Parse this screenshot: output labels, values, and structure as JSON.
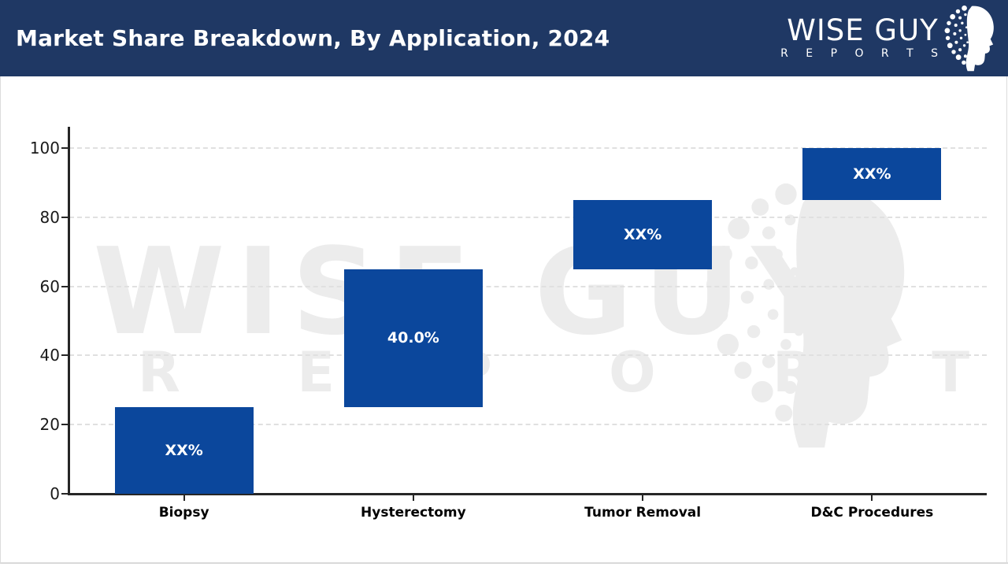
{
  "header": {
    "title": "Market Share Breakdown, By Application, 2024",
    "bg_color": "#1f3864",
    "logo": {
      "line1": "WISE GUY",
      "line2": "R E P O R T S"
    }
  },
  "watermark": {
    "line1": "WISE GUY",
    "line2": "R E P O R T S"
  },
  "chart_data": {
    "type": "bar",
    "subtype": "waterfall",
    "title": "Market Share Breakdown, By Application, 2024",
    "categories": [
      "Biopsy",
      "Hysterectomy",
      "Tumor Removal",
      "D&C Procedures"
    ],
    "segments": [
      {
        "category": "Biopsy",
        "start": 0,
        "end": 25,
        "value": 25,
        "label": "XX%"
      },
      {
        "category": "Hysterectomy",
        "start": 25,
        "end": 65,
        "value": 40,
        "label": "40.0%"
      },
      {
        "category": "Tumor Removal",
        "start": 65,
        "end": 85,
        "value": 20,
        "label": "XX%"
      },
      {
        "category": "D&C Procedures",
        "start": 85,
        "end": 100,
        "value": 15,
        "label": "XX%"
      }
    ],
    "ylim": [
      0,
      100
    ],
    "yticks": [
      0,
      20,
      40,
      60,
      80,
      100
    ],
    "xlabel": "",
    "ylabel": "",
    "grid": "horizontal-dashed",
    "legend": "none",
    "bar_color": "#0b479c",
    "bar_label_color": "#ffffff",
    "axis_color": "#262626",
    "grid_color": "#e0e0e0",
    "tick_label_color": "#1a1a1a"
  }
}
